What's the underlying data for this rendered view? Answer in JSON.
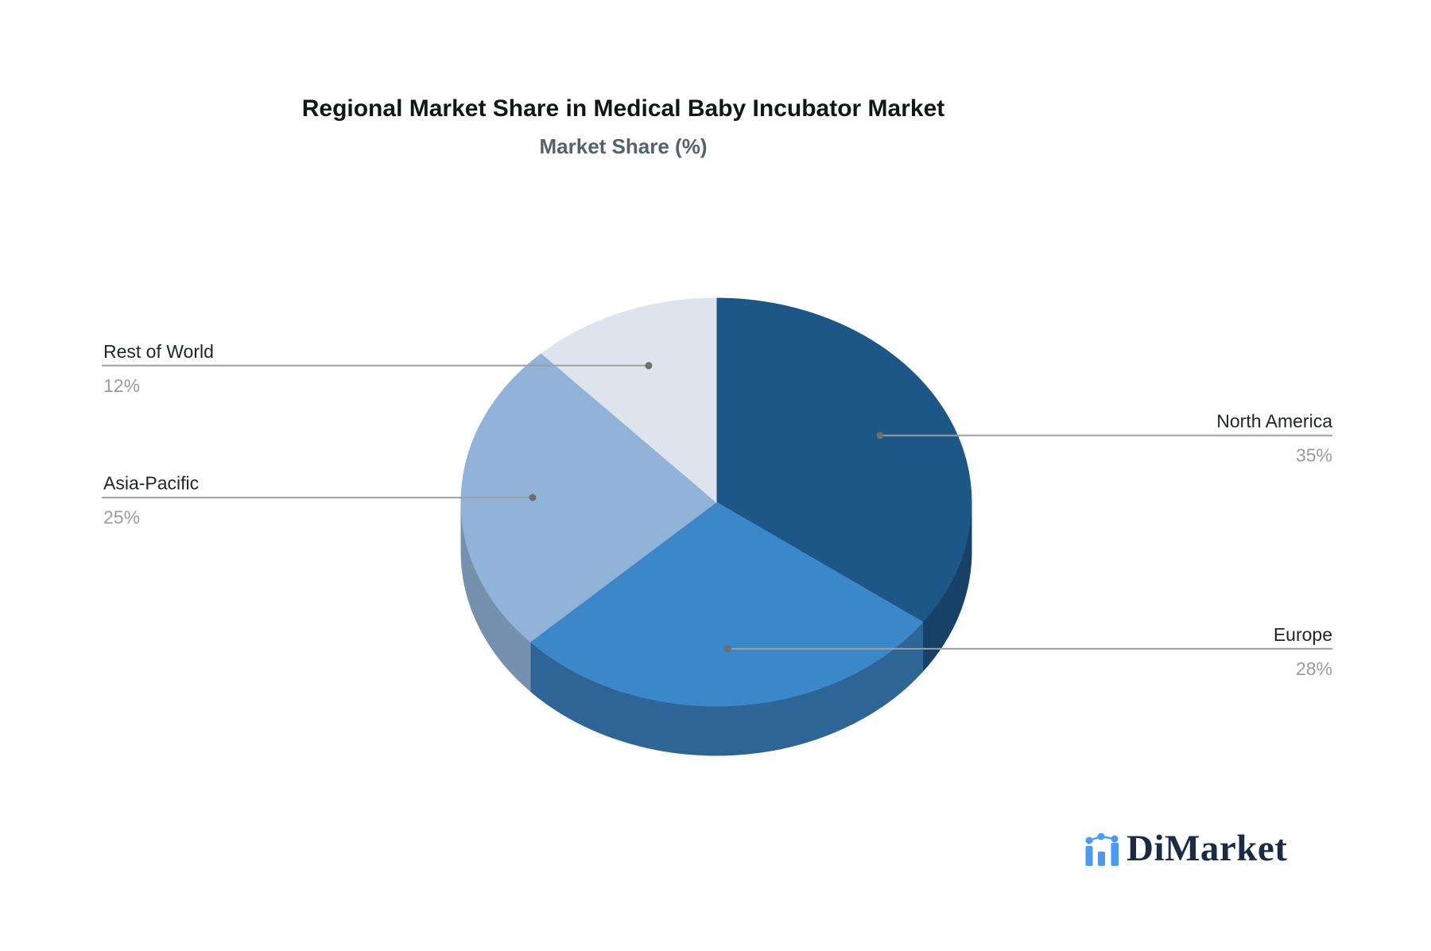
{
  "page": {
    "background": "#ffffff"
  },
  "header": {
    "title": "Regional Market Share in Medical Baby Incubator Market",
    "subtitle": "Market Share (%)"
  },
  "chart_data": {
    "type": "pie",
    "style": "3d",
    "title": "Regional Market Share in Medical Baby Incubator Market",
    "subtitle": "Market Share (%)",
    "unit": "%",
    "start_angle": "12-oclock",
    "direction": "clockwise",
    "legend": "none",
    "slices": [
      {
        "label": "North America",
        "value": 35,
        "display": "35%",
        "color": "#1d5788",
        "side_color": "#164268",
        "label_side": "right"
      },
      {
        "label": "Europe",
        "value": 28,
        "display": "28%",
        "color": "#3c87c8",
        "side_color": "#2d6596",
        "label_side": "right"
      },
      {
        "label": "Asia-Pacific",
        "value": 25,
        "display": "25%",
        "color": "#92b3d8",
        "side_color": "#7591ad",
        "label_side": "left"
      },
      {
        "label": "Rest of World",
        "value": 12,
        "display": "12%",
        "color": "#dde4ee",
        "side_color": "#b9c6d8",
        "label_side": "left"
      }
    ],
    "label_text_color": "#212529",
    "value_text_color": "#9b9b9b",
    "leader_line_color": "#9e9e9e",
    "leader_dot_color": "#6e6e6e"
  },
  "logo": {
    "text": "DiMarket",
    "icon": "bar-chart-icon",
    "icon_color": "#4a9bf5",
    "text_color": "#1b2b45"
  }
}
